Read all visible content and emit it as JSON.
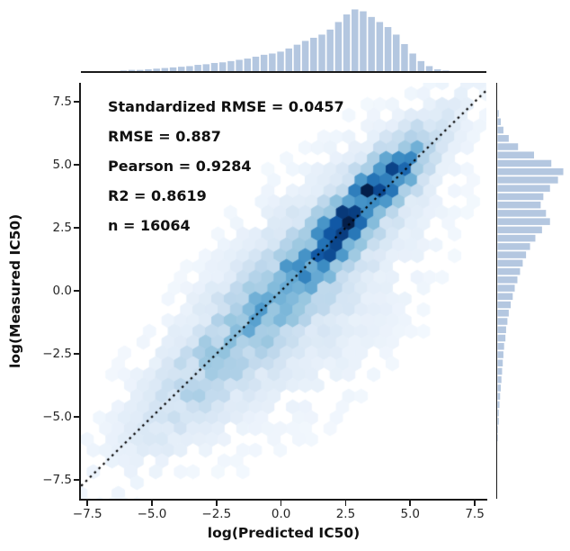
{
  "figure": {
    "background": "#ffffff",
    "spine_color": "#1a1a1a",
    "text_color": "#111111"
  },
  "chart_data": {
    "type": "hexbin",
    "title": "",
    "xlabel": "log(Predicted IC50)",
    "ylabel": "log(Measured IC50)",
    "xlim": [
      -7.75,
      7.95
    ],
    "ylim": [
      -8.25,
      8.25
    ],
    "xticks": {
      "values": [
        -7.5,
        -5.0,
        -2.5,
        0.0,
        2.5,
        5.0,
        7.5
      ],
      "labels": [
        "−7.5",
        "−5.0",
        "−2.5",
        "0.0",
        "2.5",
        "5.0",
        "7.5"
      ]
    },
    "yticks": {
      "values": [
        -7.5,
        -5.0,
        -2.5,
        0.0,
        2.5,
        5.0,
        7.5
      ],
      "labels": [
        "−7.5",
        "−5.0",
        "−2.5",
        "0.0",
        "2.5",
        "5.0",
        "7.5"
      ]
    },
    "stats": {
      "standardized_rmse": 0.0457,
      "rmse": 0.887,
      "pearson": 0.9284,
      "r2": 0.8619,
      "n": 16064
    },
    "annotations": {
      "lines": [
        "Standardized RMSE = 0.0457",
        "RMSE = 0.887",
        "Pearson = 0.9284",
        "R2 = 0.8619",
        "n = 16064"
      ]
    },
    "identity_line": {
      "style": "dotted",
      "color": "#000000",
      "from": [
        -7.74,
        -7.74
      ],
      "to": [
        7.95,
        7.95
      ]
    },
    "colormap": {
      "name": "Blues",
      "stops": [
        "#f7fbff",
        "#eaf2fb",
        "#dce9f6",
        "#cbdff0",
        "#b5d3e9",
        "#9ac7e0",
        "#7ab6d9",
        "#57a0ce",
        "#3a8ac2",
        "#2372b5",
        "#1057a4",
        "#083b7d",
        "#041f4a"
      ]
    },
    "density_components": [
      {
        "cx": 2.2,
        "cy": 2.3,
        "sx": 2.0,
        "sy": 2.2,
        "rho": 0.93,
        "w": 0.75
      },
      {
        "cx": 2.6,
        "cy": 2.7,
        "sx": 0.7,
        "sy": 0.9,
        "rho": 0.75,
        "w": 1.0
      },
      {
        "cx": 4.3,
        "cy": 4.6,
        "sx": 0.75,
        "sy": 0.8,
        "rho": 0.6,
        "w": 0.92
      },
      {
        "cx": 0.0,
        "cy": 0.0,
        "sx": 3.0,
        "sy": 3.2,
        "rho": 0.88,
        "w": 0.3
      },
      {
        "cx": -2.5,
        "cy": -2.8,
        "sx": 1.6,
        "sy": 1.8,
        "rho": 0.8,
        "w": 0.18
      },
      {
        "cx": 1.2,
        "cy": 0.0,
        "sx": 2.4,
        "sy": 2.8,
        "rho": 0.5,
        "w": 0.12
      }
    ],
    "marginal_top": {
      "bin_start": -6.9,
      "bin_width": 0.32,
      "bar_color": "#b4c7e0",
      "bar_edge_color": "#ffffff",
      "values": [
        0.02,
        0.02,
        0.03,
        0.04,
        0.04,
        0.05,
        0.06,
        0.07,
        0.08,
        0.09,
        0.1,
        0.12,
        0.13,
        0.15,
        0.16,
        0.18,
        0.2,
        0.22,
        0.25,
        0.28,
        0.3,
        0.33,
        0.38,
        0.44,
        0.5,
        0.55,
        0.6,
        0.68,
        0.8,
        0.92,
        1.0,
        0.97,
        0.88,
        0.8,
        0.72,
        0.6,
        0.45,
        0.3,
        0.18,
        0.1,
        0.05,
        0.03,
        0.02
      ]
    },
    "marginal_right": {
      "bin_start": -6.0,
      "bin_width": 0.33,
      "bar_color": "#b4c7e0",
      "bar_edge_color": "#ffffff",
      "values": [
        0.02,
        0.02,
        0.03,
        0.03,
        0.04,
        0.05,
        0.06,
        0.07,
        0.08,
        0.09,
        0.1,
        0.11,
        0.13,
        0.14,
        0.16,
        0.18,
        0.21,
        0.24,
        0.27,
        0.31,
        0.35,
        0.39,
        0.44,
        0.5,
        0.58,
        0.68,
        0.8,
        0.74,
        0.66,
        0.7,
        0.8,
        0.92,
        1.0,
        0.82,
        0.56,
        0.32,
        0.18,
        0.1,
        0.06,
        0.03
      ]
    }
  }
}
